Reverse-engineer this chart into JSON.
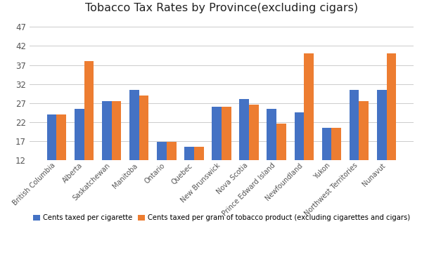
{
  "title": "Tobacco Tax Rates by Province(excluding cigars)",
  "provinces": [
    "British Columbia",
    "Alberta",
    "Saskatchewan",
    "Manitoba",
    "Ontario",
    "Quebec",
    "New Brunswick",
    "Nova Scotia",
    "Prince Edward Island",
    "Newfoundland",
    "Yukon",
    "Northwest Territories",
    "Nunavut"
  ],
  "cigarette": [
    24.0,
    25.5,
    27.5,
    30.5,
    16.8,
    15.5,
    26.0,
    28.0,
    25.5,
    24.5,
    20.5,
    30.5,
    30.5
  ],
  "tobacco": [
    24.0,
    38.0,
    27.5,
    29.0,
    16.8,
    15.5,
    26.0,
    26.5,
    21.5,
    40.0,
    20.5,
    27.5,
    40.0
  ],
  "bar_color_blue": "#4472C4",
  "bar_color_orange": "#ED7D31",
  "ylim_min": 12,
  "ylim_max": 49,
  "yticks": [
    12,
    17,
    22,
    27,
    32,
    37,
    42,
    47
  ],
  "legend_label_1": "Cents taxed per cigarette",
  "legend_label_2": "Cents taxed per gram of tobacco product (excluding cigarettes and cigars)",
  "background_color": "#ffffff",
  "grid_color": "#cccccc"
}
